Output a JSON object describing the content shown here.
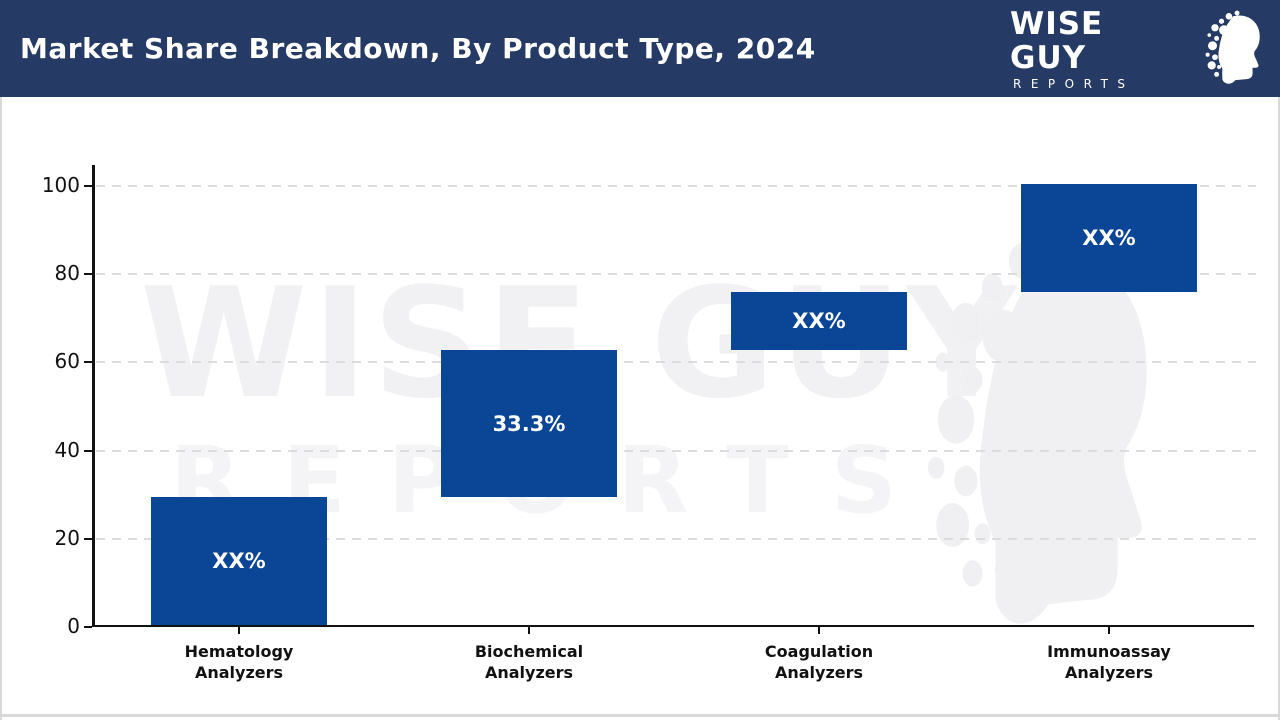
{
  "header": {
    "title": "Market Share Breakdown, By Product Type, 2024",
    "logo": {
      "line1": "WISE GUY",
      "line2": "REPORTS"
    }
  },
  "watermark": {
    "line1": "WISE GUY",
    "line2": "REPORTS"
  },
  "chart_data": {
    "type": "bar",
    "variant": "floating_waterfall_stacked",
    "title": "Market Share Breakdown, By Product Type, 2024",
    "categories": [
      "Hematology Analyzers",
      "Biochemical Analyzers",
      "Coagulation Analyzers",
      "Immunoassay Analyzers"
    ],
    "category_lines": [
      [
        "Hematology",
        "Analyzers"
      ],
      [
        "Biochemical",
        "Analyzers"
      ],
      [
        "Coagulation",
        "Analyzers"
      ],
      [
        "Immunoassay",
        "Analyzers"
      ]
    ],
    "segments": [
      {
        "category": "Hematology Analyzers",
        "start": 0,
        "end": 29.0,
        "height": 29.0,
        "label": "XX%"
      },
      {
        "category": "Biochemical Analyzers",
        "start": 29.0,
        "end": 62.3,
        "height": 33.3,
        "label": "33.3%"
      },
      {
        "category": "Coagulation Analyzers",
        "start": 62.3,
        "end": 75.6,
        "height": 13.3,
        "label": "XX%"
      },
      {
        "category": "Immunoassay Analyzers",
        "start": 75.6,
        "end": 100.0,
        "height": 24.4,
        "label": "XX%"
      }
    ],
    "xlabel": "",
    "ylabel": "",
    "yticks": [
      0,
      20,
      40,
      60,
      80,
      100
    ],
    "ylim": [
      0,
      104.8
    ],
    "grid": {
      "horizontal": true,
      "style": "dashed",
      "color": "#dcdcdc"
    },
    "legend_position": "none",
    "bar_color": "#0a4596",
    "bar_label_color": "#ffffff",
    "axis_color": "#111111",
    "header_bg": "#253a64",
    "watermark_color": "#f1f1f4"
  }
}
